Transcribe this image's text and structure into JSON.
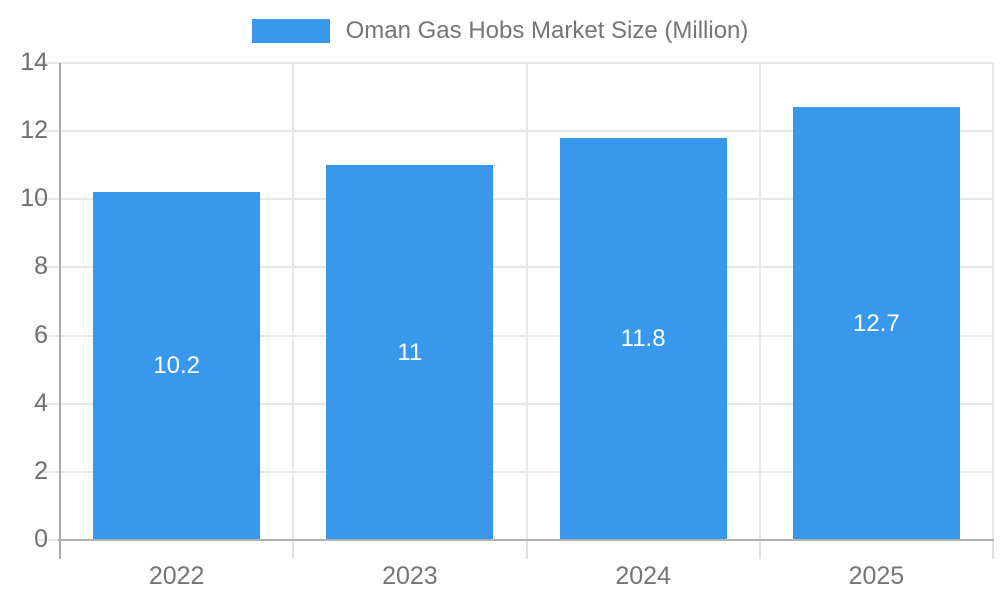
{
  "chart_data": {
    "type": "bar",
    "title": "Oman Gas Hobs Market Size (Million)",
    "categories": [
      "2022",
      "2023",
      "2024",
      "2025"
    ],
    "series": [
      {
        "name": "Oman Gas Hobs Market Size (Million)",
        "values": [
          10.2,
          11,
          11.8,
          12.7
        ]
      }
    ],
    "value_labels": [
      "10.2",
      "11",
      "11.8",
      "12.7"
    ],
    "xlabel": "",
    "ylabel": "",
    "ylim": [
      0,
      14
    ],
    "yticks": [
      0,
      2,
      4,
      6,
      8,
      10,
      12,
      14
    ],
    "grid": true,
    "legend_position": "top",
    "bar_color": "#3899ec",
    "value_label_color": "#ffffff",
    "axis_text_color": "#757575",
    "gridline_color": "#e7e7e7",
    "axis_line_color": "#aaaaaa",
    "background_color": "#ffffff"
  }
}
